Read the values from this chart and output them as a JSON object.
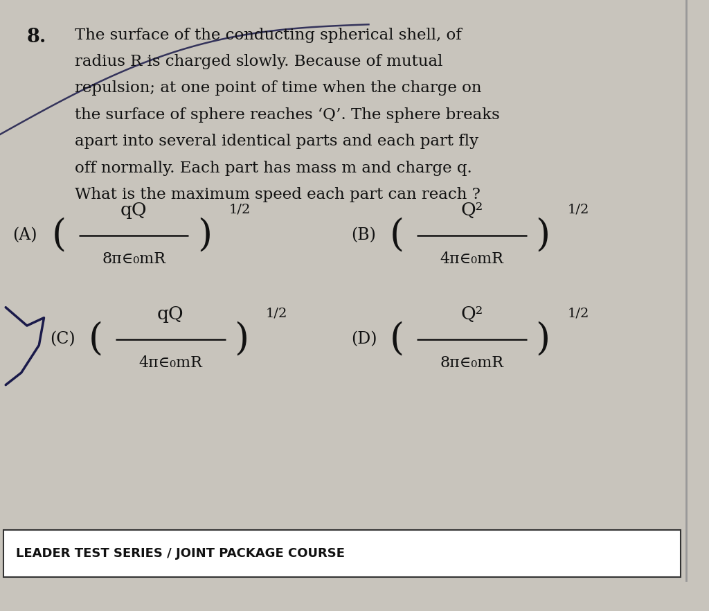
{
  "background_color": "#c8c4bc",
  "content_bg": "#e0dcd4",
  "question_number": "8.",
  "question_text_lines": [
    "The surface of the conducting spherical shell, of",
    "radius R is charged slowly. Because of mutual",
    "repulsion; at one point of time when the charge on",
    "the surface of sphere reaches ‘Q’. The sphere breaks",
    "apart into several identical parts and each part fly",
    "off normally. Each part has mass m and charge q.",
    "What is the maximum speed each part can reach ?"
  ],
  "footer_text": "LEADER TEST SERIES / JOINT PACKAGE COURSE",
  "footer_bg": "#ffffff",
  "text_color": "#111111",
  "dark_navy": "#1a1a4a",
  "font_size_question": 16.5,
  "font_size_options": 19,
  "font_size_footer": 13
}
